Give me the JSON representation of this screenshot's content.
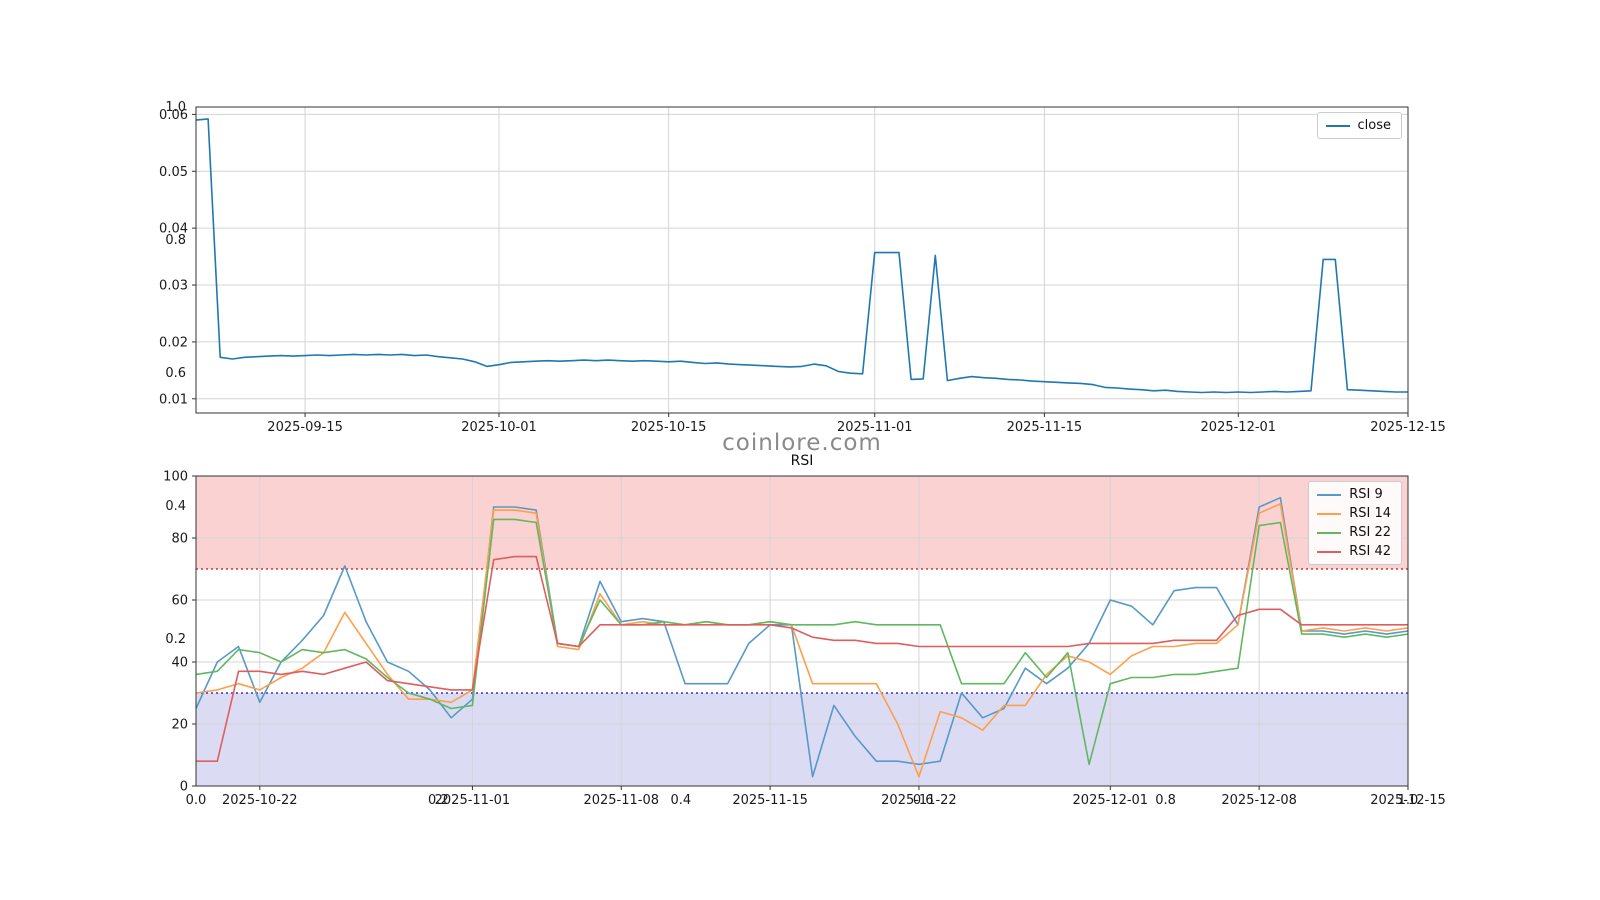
{
  "watermark": "coinlore.com",
  "style": {
    "background": "#ffffff",
    "grid": "#d4d4d4",
    "spine": "#333333",
    "tick_label": "#1a1a1a",
    "watermark_color": "#8a8a8a"
  },
  "stray_axis": {
    "x_labels": [
      "0.0",
      "0.2",
      "0.4",
      "0.6",
      "0.8",
      "1.0"
    ],
    "y_labels": [
      "1.0",
      "0.8",
      "0.6",
      "0.4",
      "0.2"
    ]
  },
  "chart_data": [
    {
      "type": "line",
      "title": "",
      "xlabel": "",
      "ylabel": "",
      "grid": true,
      "legend_position": "upper right",
      "start_date": "2025-09-06",
      "ylim": [
        0.0075,
        0.0613
      ],
      "yticks": [
        {
          "value": 0.01,
          "label": "0.01"
        },
        {
          "value": 0.02,
          "label": "0.02"
        },
        {
          "value": 0.03,
          "label": "0.03"
        },
        {
          "value": 0.04,
          "label": "0.04"
        },
        {
          "value": 0.05,
          "label": "0.05"
        },
        {
          "value": 0.06,
          "label": "0.06"
        }
      ],
      "xticks": [
        "2025-09-15",
        "2025-10-01",
        "2025-10-15",
        "2025-11-01",
        "2025-11-15",
        "2025-12-01",
        "2025-12-15"
      ],
      "series": [
        {
          "name": "close",
          "color": "#1f77b4",
          "values": [
            0.059,
            0.0592,
            0.0173,
            0.017,
            0.0173,
            0.0174,
            0.0175,
            0.0176,
            0.0175,
            0.0176,
            0.0177,
            0.0176,
            0.0177,
            0.0178,
            0.0177,
            0.0178,
            0.0177,
            0.0178,
            0.0176,
            0.0177,
            0.0174,
            0.0172,
            0.017,
            0.0165,
            0.0157,
            0.016,
            0.0164,
            0.0165,
            0.0166,
            0.0167,
            0.0166,
            0.0167,
            0.0168,
            0.0167,
            0.0168,
            0.0167,
            0.0166,
            0.0167,
            0.0166,
            0.0165,
            0.0166,
            0.0164,
            0.0162,
            0.0163,
            0.0161,
            0.016,
            0.0159,
            0.0158,
            0.0157,
            0.0156,
            0.0157,
            0.0161,
            0.0158,
            0.0148,
            0.0145,
            0.0144,
            0.0357,
            0.0357,
            0.0357,
            0.0134,
            0.0135,
            0.0352,
            0.0132,
            0.0136,
            0.0139,
            0.0137,
            0.0136,
            0.0134,
            0.0133,
            0.0131,
            0.013,
            0.0129,
            0.0128,
            0.0127,
            0.0125,
            0.012,
            0.0119,
            0.0117,
            0.0116,
            0.0114,
            0.0115,
            0.0113,
            0.0112,
            0.0111,
            0.0112,
            0.0111,
            0.0112,
            0.0111,
            0.0112,
            0.0113,
            0.0112,
            0.0113,
            0.0114,
            0.0345,
            0.0345,
            0.0116,
            0.0115,
            0.0114,
            0.0113,
            0.0112,
            0.0112
          ]
        }
      ]
    },
    {
      "type": "line",
      "title": "RSI",
      "xlabel": "",
      "ylabel": "",
      "grid": true,
      "legend_position": "upper right",
      "start_date": "2025-10-19",
      "ylim": [
        0,
        100
      ],
      "yticks": [
        {
          "value": 0,
          "label": "0"
        },
        {
          "value": 20,
          "label": "20"
        },
        {
          "value": 40,
          "label": "40"
        },
        {
          "value": 60,
          "label": "60"
        },
        {
          "value": 80,
          "label": "80"
        },
        {
          "value": 100,
          "label": "100"
        }
      ],
      "xticks": [
        "2025-10-22",
        "2025-11-01",
        "2025-11-08",
        "2025-11-15",
        "2025-11-22",
        "2025-12-01",
        "2025-12-08",
        "2025-12-15"
      ],
      "bands": [
        {
          "from": 70,
          "to": 100,
          "color": "#fad2d2",
          "meaning": "overbought"
        },
        {
          "from": 0,
          "to": 30,
          "color": "#dbdbf4",
          "meaning": "oversold"
        }
      ],
      "hlines": [
        {
          "y": 70,
          "color": "#cc1111",
          "style": "dotted"
        },
        {
          "y": 30,
          "color": "#1111bb",
          "style": "dotted"
        }
      ],
      "series": [
        {
          "name": "RSI 9",
          "color": "#5799c7",
          "values": [
            25,
            40,
            45,
            27,
            40,
            47,
            55,
            71,
            53,
            40,
            37,
            31,
            22,
            28,
            90,
            90,
            89,
            46,
            45,
            66,
            53,
            54,
            53,
            33,
            33,
            33,
            46,
            52,
            52,
            3,
            26,
            16,
            8,
            8,
            7,
            8,
            30,
            22,
            25,
            38,
            33,
            38,
            46,
            60,
            58,
            52,
            63,
            64,
            64,
            52,
            90,
            93,
            50,
            50,
            49,
            50,
            49,
            50
          ]
        },
        {
          "name": "RSI 14",
          "color": "#ff9f4a",
          "values": [
            30,
            31,
            33,
            31,
            35,
            38,
            43,
            56,
            46,
            36,
            28,
            28,
            27,
            31,
            89,
            89,
            88,
            45,
            44,
            62,
            52,
            53,
            52,
            52,
            53,
            52,
            52,
            53,
            52,
            33,
            33,
            33,
            33,
            20,
            3,
            24,
            22,
            18,
            26,
            26,
            36,
            42,
            40,
            36,
            42,
            45,
            45,
            46,
            46,
            52,
            88,
            91,
            50,
            51,
            50,
            51,
            50,
            51
          ]
        },
        {
          "name": "RSI 22",
          "color": "#61b861",
          "values": [
            36,
            37,
            44,
            43,
            40,
            44,
            43,
            44,
            41,
            35,
            30,
            28,
            25,
            26,
            86,
            86,
            85,
            46,
            45,
            60,
            52,
            52,
            53,
            52,
            53,
            52,
            52,
            53,
            52,
            52,
            52,
            53,
            52,
            52,
            52,
            52,
            33,
            33,
            33,
            43,
            35,
            43,
            7,
            33,
            35,
            35,
            36,
            36,
            37,
            38,
            84,
            85,
            49,
            49,
            48,
            49,
            48,
            49
          ]
        },
        {
          "name": "RSI 42",
          "color": "#e05d5e",
          "values": [
            8,
            8,
            37,
            37,
            36,
            37,
            36,
            38,
            40,
            34,
            33,
            32,
            31,
            31,
            73,
            74,
            74,
            46,
            45,
            52,
            52,
            52,
            52,
            52,
            52,
            52,
            52,
            52,
            51,
            48,
            47,
            47,
            46,
            46,
            45,
            45,
            45,
            45,
            45,
            45,
            45,
            45,
            46,
            46,
            46,
            46,
            47,
            47,
            47,
            55,
            57,
            57,
            52,
            52,
            52,
            52,
            52,
            52
          ]
        }
      ]
    }
  ]
}
